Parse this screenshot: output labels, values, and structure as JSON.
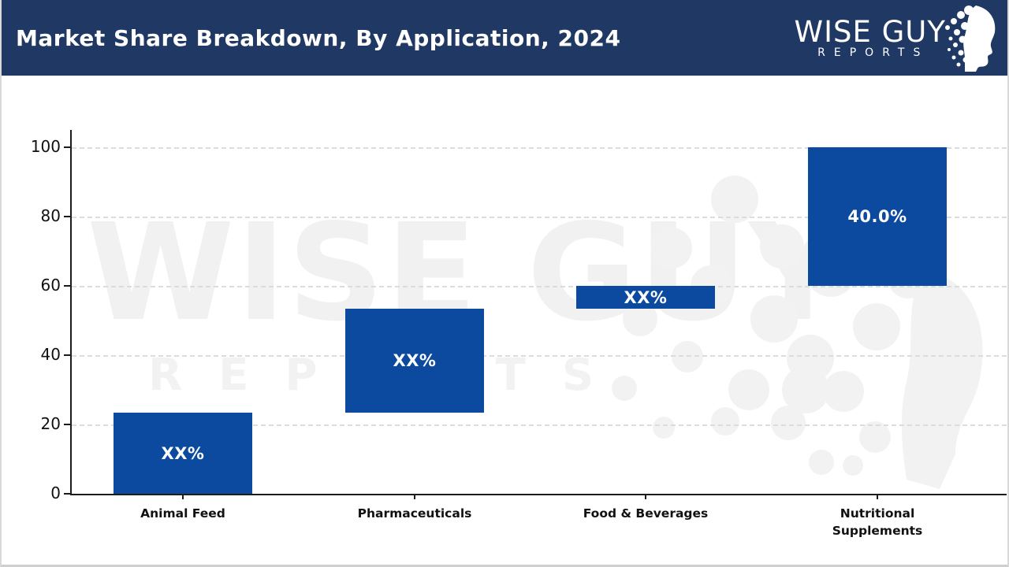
{
  "header": {
    "title": "Market Share Breakdown, By Application, 2024",
    "logo": {
      "line1": "WISE GUY",
      "line2": "REPORTS"
    }
  },
  "watermark": {
    "line1": "WISE GUY",
    "line2": "REPORTS"
  },
  "chart_data": {
    "type": "bar",
    "variant": "waterfall",
    "title": "Market Share Breakdown, By Application, 2024",
    "categories": [
      "Animal Feed",
      "Pharmaceuticals",
      "Food & Beverages",
      "Nutritional Supplements"
    ],
    "segments": [
      {
        "category": "Animal Feed",
        "start": 0,
        "end": 23.3,
        "label": "XX%"
      },
      {
        "category": "Pharmaceuticals",
        "start": 23.3,
        "end": 53.3,
        "label": "XX%"
      },
      {
        "category": "Food & Beverages",
        "start": 53.3,
        "end": 60,
        "label": "XX%"
      },
      {
        "category": "Nutritional Supplements",
        "start": 60,
        "end": 100,
        "label": "40.0%"
      }
    ],
    "ylim": [
      0,
      100
    ],
    "yticks": [
      0,
      20,
      40,
      60,
      80,
      100
    ],
    "xlabel": "",
    "ylabel": "",
    "grid": "horizontal-dashed",
    "legend": "none",
    "bar_color": "#0b4a9e",
    "bar_label_color": "#ffffff"
  },
  "colors": {
    "header_bg": "#1f3864",
    "bar_blue": "#0b4a9e",
    "grid": "#dcdcdc",
    "axis": "#1c1c1c",
    "watermark": "#f1f1f1",
    "page_border": "#d9d9d9"
  }
}
